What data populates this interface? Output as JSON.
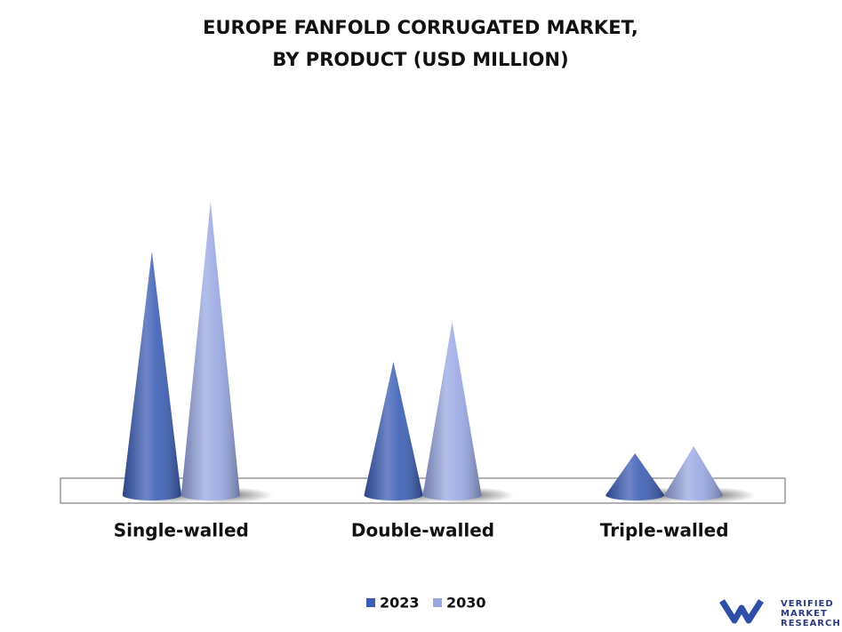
{
  "chart_data": {
    "type": "cone",
    "title": [
      "EUROPE FANFOLD CORRUGATED MARKET,",
      "BY PRODUCT (USD MILLION)"
    ],
    "categories": [
      "Single-walled",
      "Double-walled",
      "Triple-walled"
    ],
    "series": [
      {
        "name": "2023",
        "color": "#3b5db4",
        "values": [
          274,
          150,
          47
        ]
      },
      {
        "name": "2030",
        "color": "#98a8e2",
        "values": [
          330,
          195,
          55
        ]
      }
    ],
    "legend": "bottom"
  },
  "logo": {
    "lines": [
      "VERIFIED",
      "MARKET",
      "RESEARCH"
    ]
  }
}
